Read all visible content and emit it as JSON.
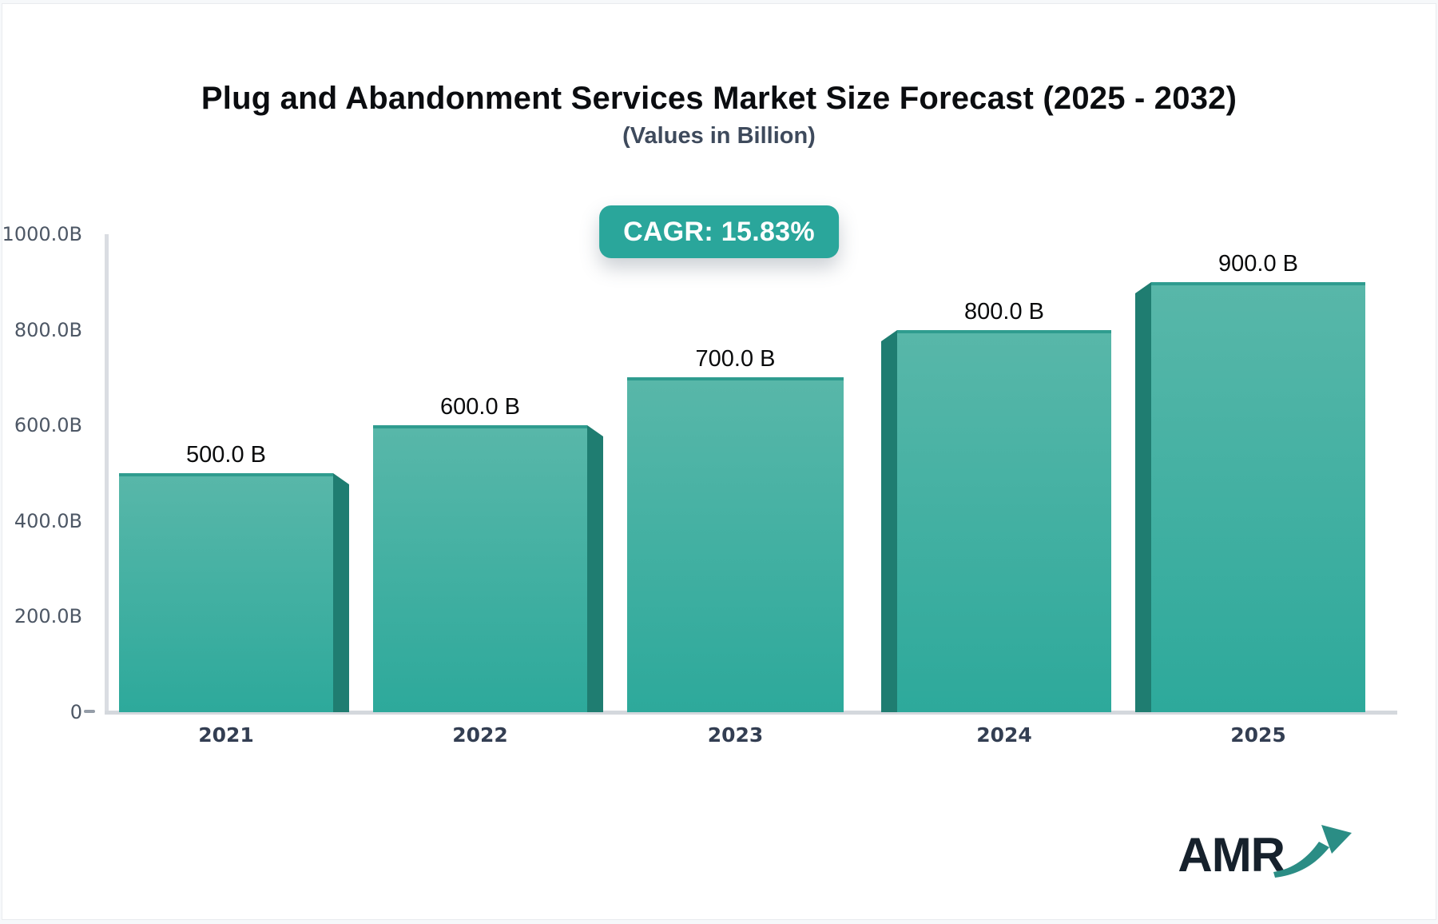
{
  "page": {
    "background": "#f6f8fa",
    "card_background": "#ffffff",
    "card_border": "#e9ebef"
  },
  "header": {
    "title": "Plug and Abandonment Services Market Size Forecast (2025 - 2032)",
    "subtitle": "(Values in Billion)"
  },
  "badge": {
    "label": "CAGR: 15.83%",
    "background": "#2aa69b",
    "text_color": "#ffffff"
  },
  "chart_data": {
    "type": "bar",
    "title": "Plug and Abandonment Services Market Size Forecast (2025 - 2032)",
    "subtitle": "(Values in Billion)",
    "categories": [
      "2021",
      "2022",
      "2023",
      "2024",
      "2025"
    ],
    "values": [
      500,
      600,
      700,
      800,
      900
    ],
    "value_labels": [
      "500.0 B",
      "600.0 B",
      "700.0 B",
      "800.0 B",
      "900.0 B"
    ],
    "unit": "Billion",
    "ylim": [
      0,
      1000
    ],
    "y_ticks": [
      {
        "value": 0,
        "label": "0"
      },
      {
        "value": 200,
        "label": "200.0B"
      },
      {
        "value": 400,
        "label": "400.0B"
      },
      {
        "value": 600,
        "label": "600.0B"
      },
      {
        "value": 800,
        "label": "800.0B"
      },
      {
        "value": 1000,
        "label": "1000.0B"
      }
    ],
    "xlabel": "",
    "ylabel": "",
    "grid": false,
    "legend": false,
    "style_3d": true,
    "colors": {
      "bar_gradient_top": "#58b7a9",
      "bar_gradient_bottom": "#2da99b",
      "bar_top_edge": "#2f9c8f",
      "bar_side": "#1f7d71",
      "axis_line": "#dadde2",
      "baseline": "#d4d8dd"
    }
  },
  "logo": {
    "text": "AMR",
    "text_color": "#16212c",
    "arrow_color": "#2b8d85"
  }
}
